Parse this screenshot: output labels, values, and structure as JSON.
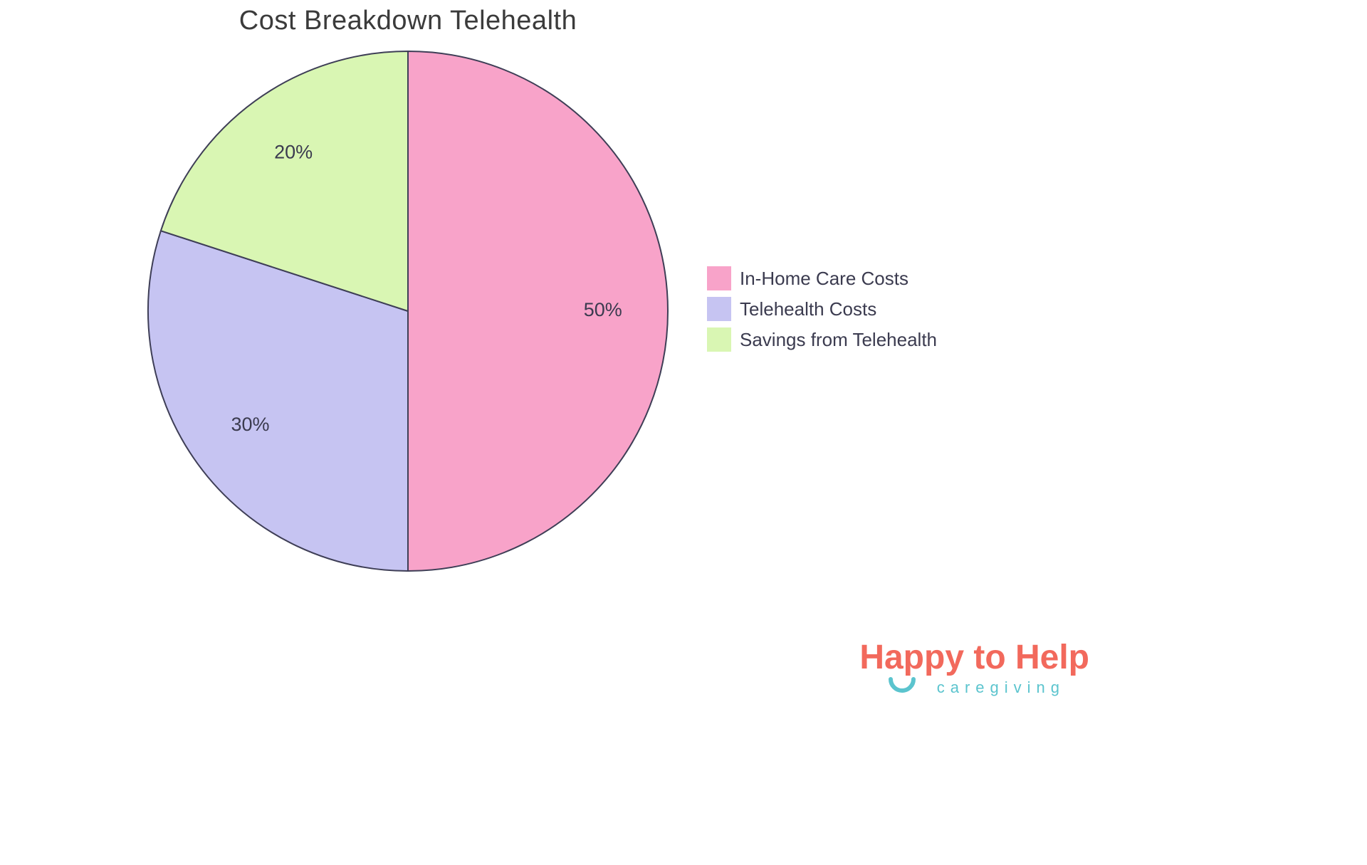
{
  "chart_data": {
    "type": "pie",
    "title": "Cost Breakdown Telehealth",
    "labels": [
      "In-Home Care Costs",
      "Telehealth Costs",
      "Savings from Telehealth"
    ],
    "values": [
      50,
      30,
      20
    ],
    "slice_labels": [
      "50%",
      "30%",
      "20%"
    ],
    "colors": [
      "#F8A3C9",
      "#C6C4F2",
      "#D9F6B3"
    ],
    "stroke_color": "#3E3E56",
    "start_angle_deg": 0,
    "direction": "clockwise",
    "legend_position": "right",
    "label_color": "#3b3b4f"
  },
  "legend": {
    "items": [
      {
        "label": "In-Home Care Costs"
      },
      {
        "label": "Telehealth Costs"
      },
      {
        "label": "Savings from Telehealth"
      }
    ]
  },
  "logo": {
    "brand": "Happy to Help",
    "tagline": "caregiving",
    "brand_color": "#F2695C",
    "tagline_color": "#5BC4CE"
  }
}
